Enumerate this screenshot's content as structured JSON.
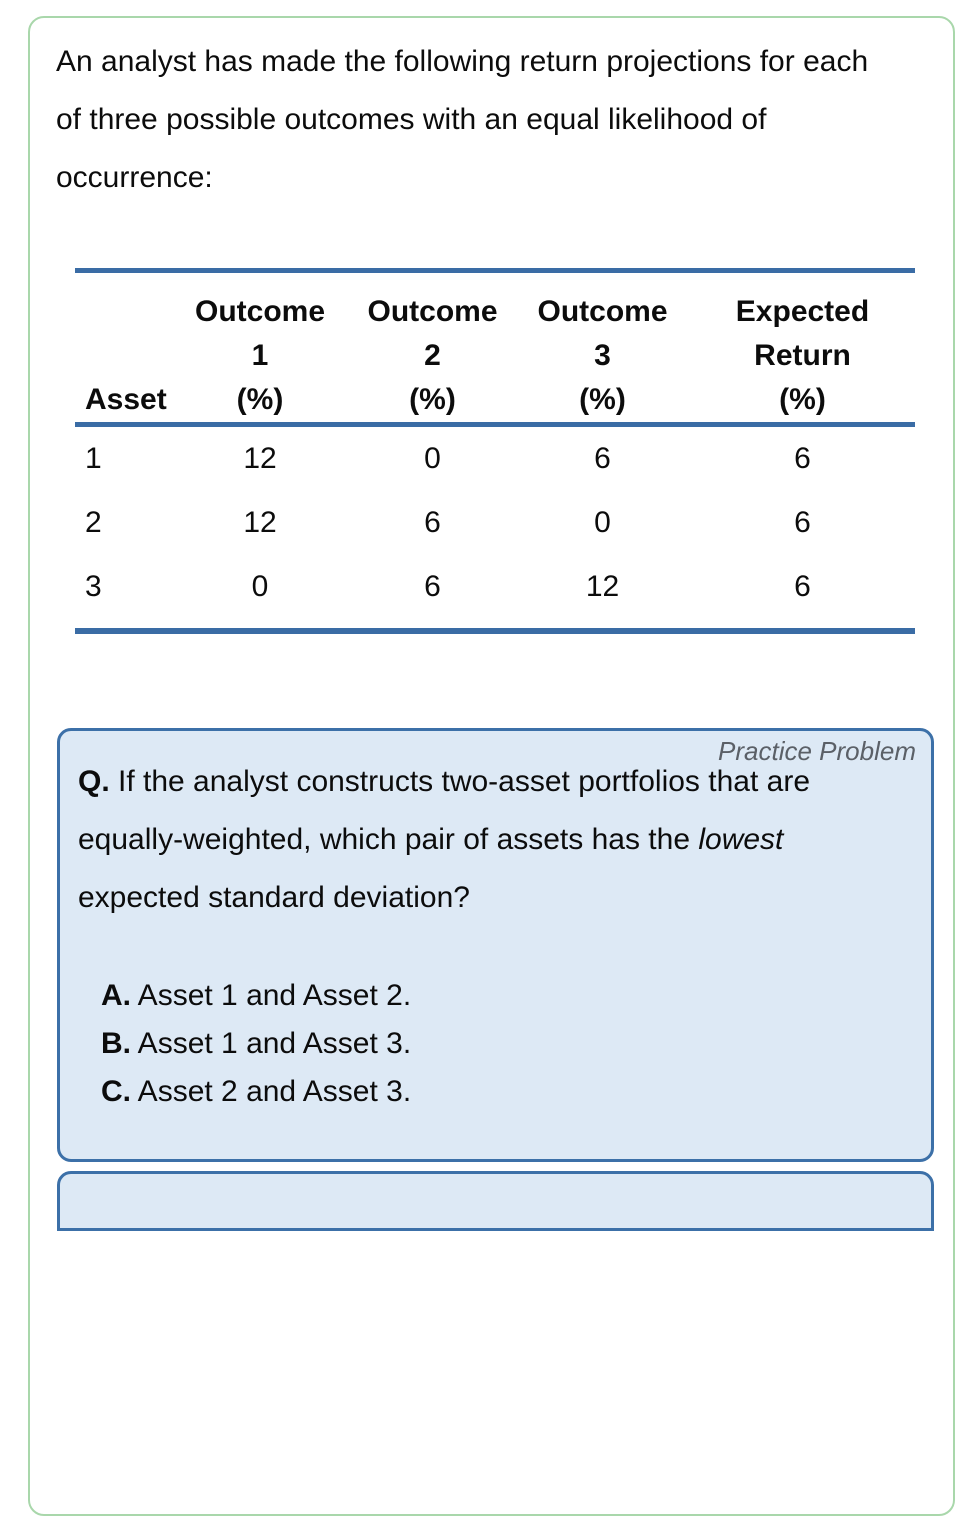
{
  "colors": {
    "card_border": "#a9d7ab",
    "table_rule": "#3a6ca5",
    "box_border": "#3c70a8",
    "box_fill": "#dde9f5",
    "label_text": "#5b6067",
    "body_text": "#0c0c0c"
  },
  "intro": {
    "text": "An analyst has made the following return projections for each of three possible outcomes with an equal likelihood of occurrence:"
  },
  "table": {
    "headers": [
      {
        "lines": [
          "Asset"
        ]
      },
      {
        "lines": [
          "Outcome",
          "1",
          "(%)"
        ]
      },
      {
        "lines": [
          "Outcome",
          "2",
          "(%)"
        ]
      },
      {
        "lines": [
          "Outcome",
          "3",
          "(%)"
        ]
      },
      {
        "lines": [
          "Expected",
          "Return",
          "(%)"
        ]
      }
    ],
    "rows": [
      [
        "1",
        "12",
        "0",
        "6",
        "6"
      ],
      [
        "2",
        "12",
        "6",
        "0",
        "6"
      ],
      [
        "3",
        "0",
        "6",
        "12",
        "6"
      ]
    ]
  },
  "practice_problem": {
    "label": "Practice Problem",
    "question": {
      "prefix": "Q.",
      "text_before_emphasis": " If the analyst constructs two-asset portfolios that are equally-weighted, which pair of assets has the ",
      "emphasis": "lowest",
      "text_after_emphasis": " expected standard deviation?"
    },
    "options": [
      {
        "letter": "A.",
        "text": " Asset 1 and Asset 2."
      },
      {
        "letter": "B.",
        "text": " Asset 1 and Asset 3."
      },
      {
        "letter": "C.",
        "text": " Asset 2 and Asset 3."
      }
    ]
  }
}
